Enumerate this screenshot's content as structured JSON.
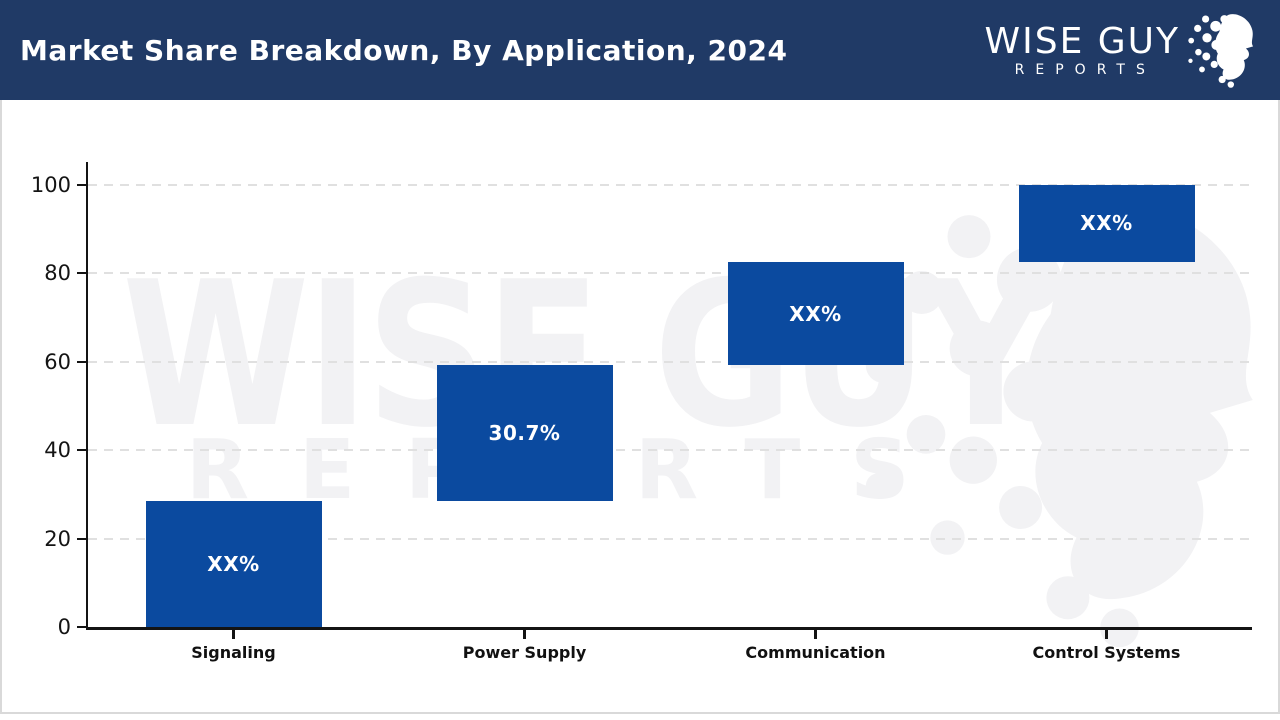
{
  "header": {
    "title": "Market Share Breakdown, By Application, 2024",
    "bg_color": "#203a66",
    "logo": {
      "wordmark": "WISE GUY",
      "subtext": "REPORTS",
      "icon": "wiseguy-face-icon",
      "color": "#ffffff"
    }
  },
  "watermark": {
    "wordmark": "WISE GUY",
    "subtext": "REPORTS",
    "icon": "wiseguy-face-icon",
    "color": "#f2f2f4"
  },
  "chart_data": {
    "type": "bar",
    "variant": "waterfall",
    "title": "Market Share Breakdown, By Application, 2024",
    "categories": [
      "Signaling",
      "Power Supply",
      "Communication",
      "Control Systems"
    ],
    "segments": [
      {
        "category": "Signaling",
        "start": 0,
        "end": 28.5,
        "label": "XX%"
      },
      {
        "category": "Power Supply",
        "start": 28.5,
        "end": 59.2,
        "label": "30.7%"
      },
      {
        "category": "Communication",
        "start": 59.2,
        "end": 82.4,
        "label": "XX%"
      },
      {
        "category": "Control Systems",
        "start": 82.4,
        "end": 100,
        "label": "XX%"
      }
    ],
    "yticks": [
      "0",
      "20",
      "40",
      "60",
      "80",
      "100"
    ],
    "ylim": [
      0,
      105
    ],
    "xlabel": "",
    "ylabel": "",
    "grid": "horizontal-dashed",
    "legend": "none",
    "bar_color": "#0b4a9f",
    "bar_label_color": "#ffffff",
    "axis_color": "#141414",
    "grid_color": "#e0e0e0"
  }
}
